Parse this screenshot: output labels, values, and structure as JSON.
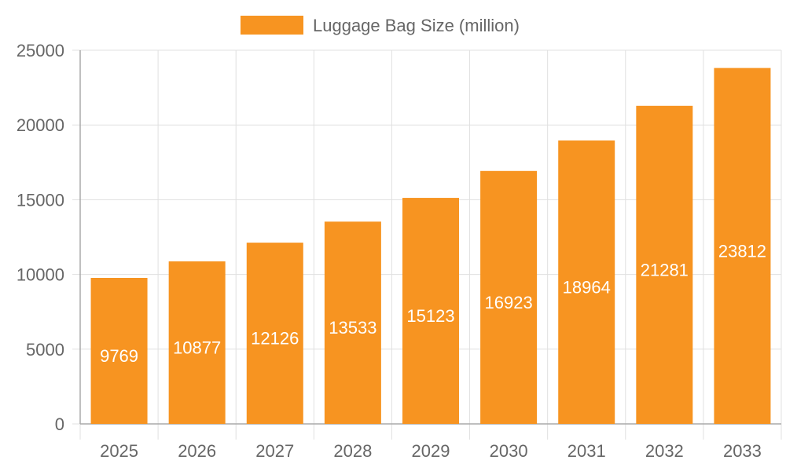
{
  "chart_data": {
    "type": "bar",
    "categories": [
      "2025",
      "2026",
      "2027",
      "2028",
      "2029",
      "2030",
      "2031",
      "2032",
      "2033"
    ],
    "series": [
      {
        "name": "Luggage Bag Size (million)",
        "values": [
          9769,
          10877,
          12126,
          13533,
          15123,
          16923,
          18964,
          21281,
          23812
        ],
        "color": "#f79421"
      }
    ],
    "ylim": [
      0,
      25000
    ],
    "yticks": [
      0,
      5000,
      10000,
      15000,
      20000,
      25000
    ],
    "grid": true,
    "legend_position": "top",
    "data_labels": true,
    "data_label_color": "#ffffff",
    "grid_color": "#e0e0e0",
    "axis_color": "#aaaaaa",
    "text_color": "#666666"
  }
}
